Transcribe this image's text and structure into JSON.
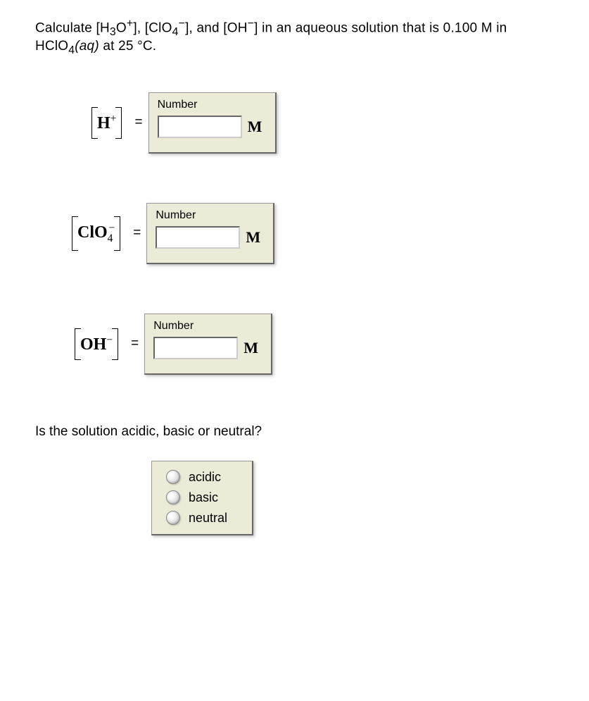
{
  "question": {
    "prefix": "Calculate [H",
    "sub1": "3",
    "o": "O",
    "sup1": "+",
    "mid1": "], [ClO",
    "sub2": "4",
    "sup2": "−",
    "mid2": "], and [OH",
    "sup3": "−",
    "mid3": "] in an aqueous solution that is 0.100 M in HClO",
    "sub3": "4",
    "aq": "(aq)",
    "suffix": " at 25 °C."
  },
  "inputs": [
    {
      "species_main": "H",
      "species_sub": "",
      "species_sup": "+",
      "label": "Number",
      "value": "",
      "unit": "M"
    },
    {
      "species_main": "ClO",
      "species_sub": "4",
      "species_sup": "−",
      "label": "Number",
      "value": "",
      "unit": "M"
    },
    {
      "species_main": "OH",
      "species_sub": "",
      "species_sup": "−",
      "label": "Number",
      "value": "",
      "unit": "M"
    }
  ],
  "subquestion": "Is the solution acidic, basic or neutral?",
  "options": [
    {
      "label": "acidic"
    },
    {
      "label": "basic"
    },
    {
      "label": "neutral"
    }
  ],
  "colors": {
    "panel_bg": "#ecebd8"
  }
}
